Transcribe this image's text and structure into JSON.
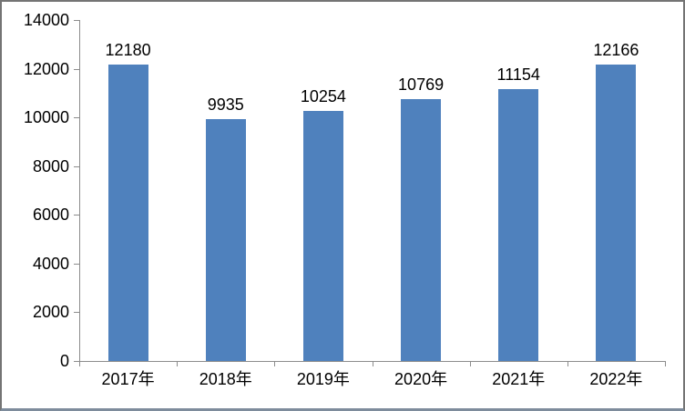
{
  "chart_data": {
    "type": "bar",
    "title": "",
    "xlabel": "",
    "ylabel": "",
    "categories": [
      "2017年",
      "2018年",
      "2019年",
      "2020年",
      "2021年",
      "2022年"
    ],
    "series": [
      {
        "name": "",
        "values": [
          12180,
          9935,
          10254,
          10769,
          11154,
          12166
        ],
        "data_labels": [
          "12180",
          "9935",
          "10254",
          "10769",
          "11154",
          "12166"
        ]
      }
    ],
    "ylim": [
      0,
      14000
    ],
    "ytick_interval": 2000,
    "ytick_labels": [
      "0",
      "2000",
      "4000",
      "6000",
      "8000",
      "10000",
      "12000",
      "14000"
    ],
    "grid": "off",
    "legend": "none",
    "colors": {
      "bar_fill": "#4F81BD",
      "axis_line": "#8C8C8C",
      "tick_label_text": "#000000",
      "data_label_text": "#000000",
      "plot_background": "#FFFFFF",
      "frame_border": "#747474",
      "frame_bottom_edge": "#7E8C9C"
    }
  }
}
